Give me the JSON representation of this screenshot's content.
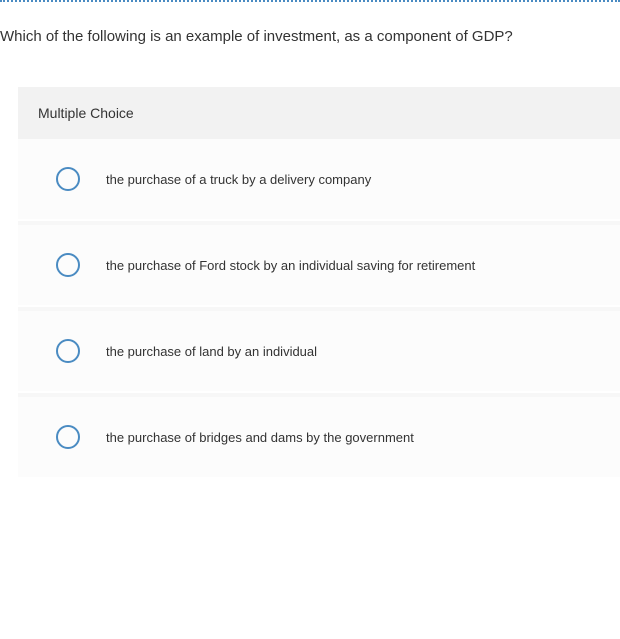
{
  "question": {
    "text": "Which of the following is an example of investment, as a component of GDP?"
  },
  "section": {
    "label": "Multiple Choice"
  },
  "options": [
    {
      "label": "the purchase of a truck by a delivery company"
    },
    {
      "label": "the purchase of Ford stock by an individual saving for retirement"
    },
    {
      "label": "the purchase of land by an individual"
    },
    {
      "label": "the purchase of bridges and dams by the government"
    }
  ],
  "colors": {
    "accent": "#4a8bc2",
    "text": "#333333",
    "header_bg": "#f2f2f2",
    "row_bg": "#ffffff"
  }
}
